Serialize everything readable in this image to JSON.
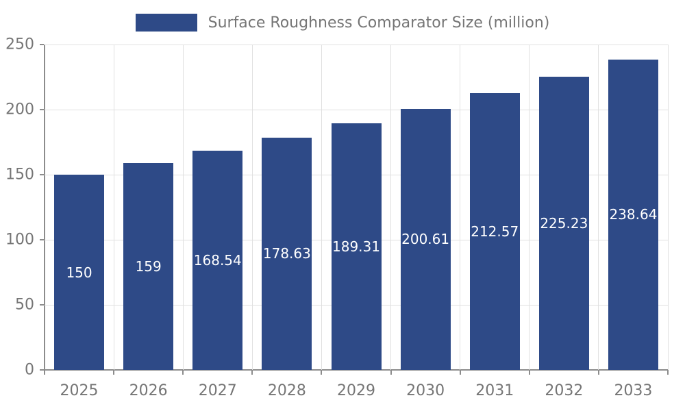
{
  "chart_data": {
    "type": "bar",
    "title": "Surface Roughness Comparator Size (million)",
    "categories": [
      "2025",
      "2026",
      "2027",
      "2028",
      "2029",
      "2030",
      "2031",
      "2032",
      "2033"
    ],
    "values": [
      150,
      159,
      168.54,
      178.63,
      189.31,
      200.61,
      212.57,
      225.23,
      238.64
    ],
    "value_labels": [
      "150",
      "159",
      "168.54",
      "178.63",
      "189.31",
      "200.61",
      "212.57",
      "225.23",
      "238.64"
    ],
    "xlabel": "",
    "ylabel": "",
    "ylim": [
      0,
      250
    ],
    "yticks": [
      0,
      50,
      100,
      150,
      200,
      250
    ],
    "ytick_labels": [
      "0",
      "50",
      "100",
      "150",
      "200",
      "250"
    ],
    "grid": true,
    "legend_position": "top-center",
    "colors": {
      "bar": "#2e4a87",
      "bar_label": "#ffffff",
      "axis_text": "#757575",
      "gridline": "#e0e0e0",
      "axis_line": "#8c8c8c",
      "background": "#ffffff"
    }
  }
}
